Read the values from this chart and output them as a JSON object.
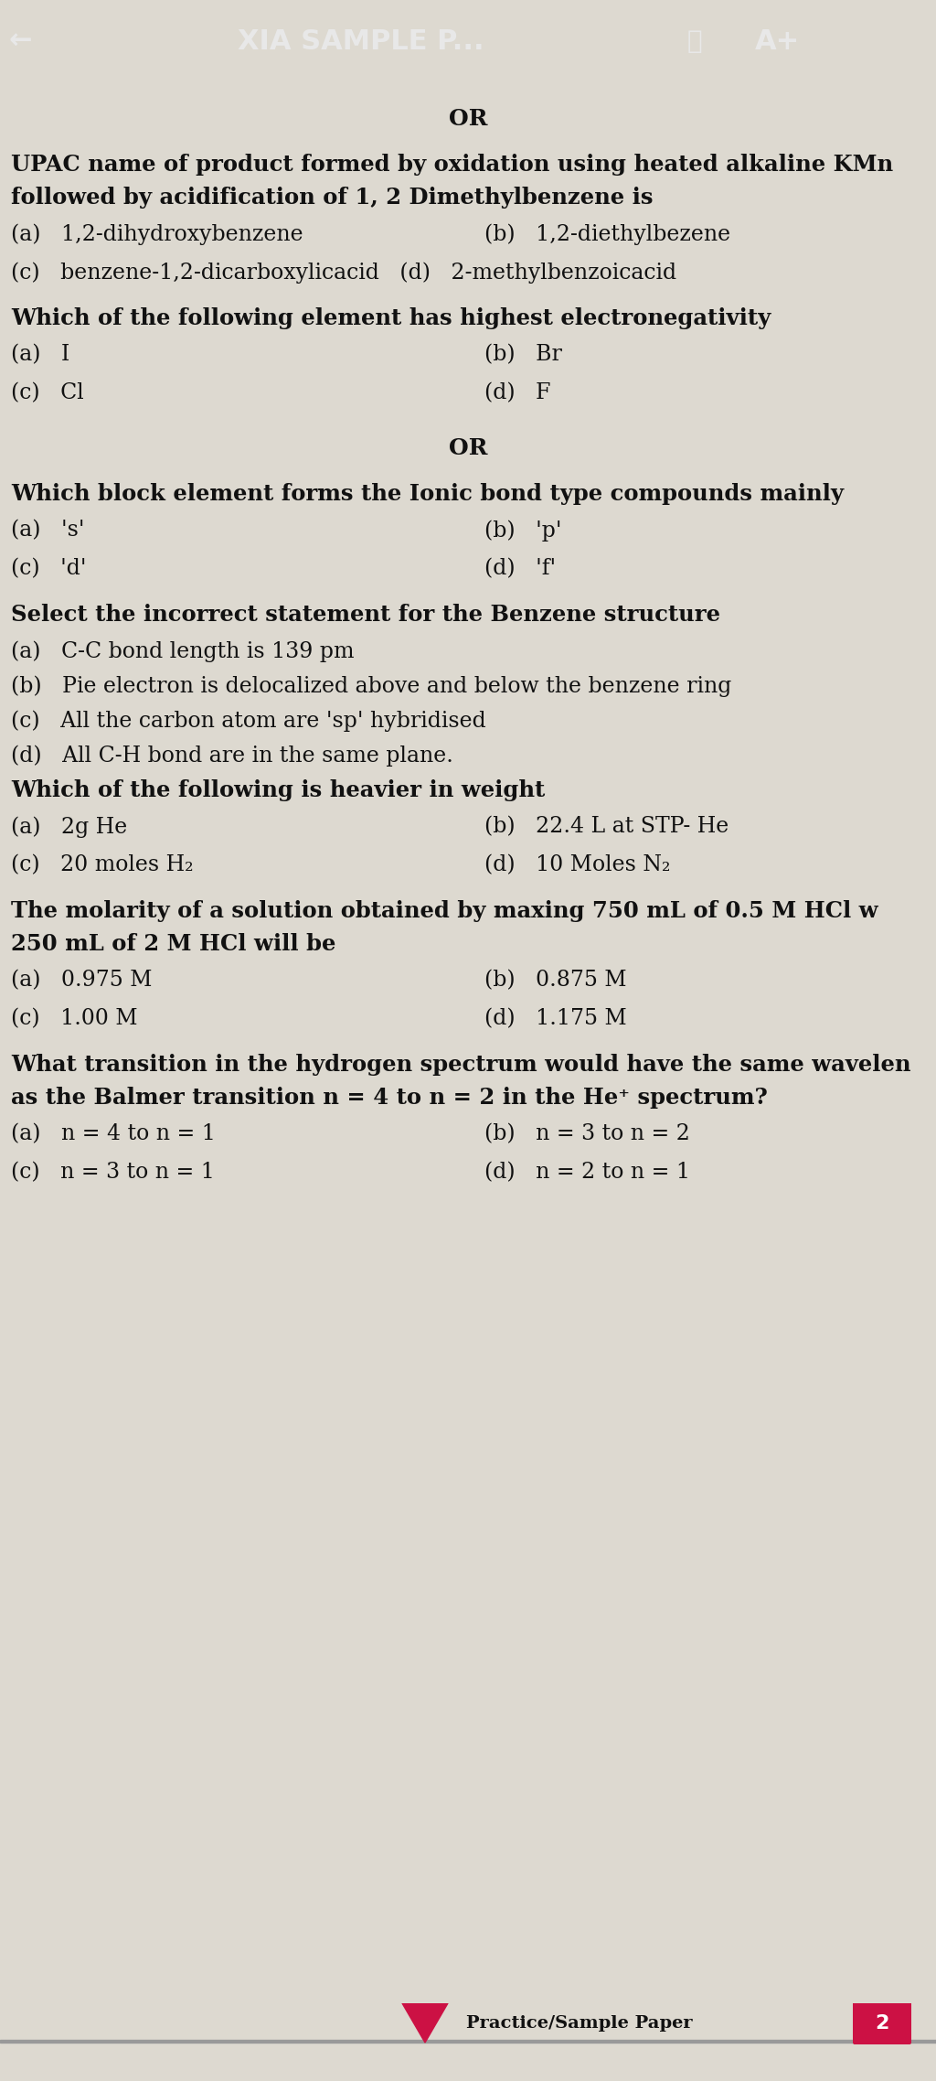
{
  "header_bg": "#252525",
  "header_text_color": "#e8e8e8",
  "header_title": "XIA SAMPLE P...",
  "body_bg": "#ddd9d0",
  "body_text_color": "#111111",
  "footer_text": "Practice/Sample Paper",
  "footer_text_color": "#111111",
  "footer_bar_color": "#888888",
  "page_num": "2",
  "content": [
    {
      "type": "or",
      "text": "OR"
    },
    {
      "type": "question",
      "lines": [
        "UPAC name of product formed by oxidation using heated alkaline KMn",
        "followed by acidification of 1, 2 Dimethylbenzene is"
      ]
    },
    {
      "type": "options_2col",
      "rows": [
        [
          "(a)   1,2-dihydroxybenzene",
          "(b)   1,2-diethylbezene"
        ],
        [
          "(c)   benzene-1,2-dicarboxylicacid   (d)   2-methylbenzoicacid",
          null
        ]
      ]
    },
    {
      "type": "question",
      "lines": [
        "Which of the following element has highest electronegativity"
      ]
    },
    {
      "type": "options_2col",
      "rows": [
        [
          "(a)   I",
          "(b)   Br"
        ],
        [
          "(c)   Cl",
          "(d)   F"
        ]
      ]
    },
    {
      "type": "or",
      "text": "OR"
    },
    {
      "type": "question",
      "lines": [
        "Which block element forms the Ionic bond type compounds mainly"
      ]
    },
    {
      "type": "options_2col",
      "rows": [
        [
          "(a)   's'",
          "(b)   'p'"
        ],
        [
          "(c)   'd'",
          "(d)   'f'"
        ]
      ]
    },
    {
      "type": "question",
      "lines": [
        "Select the incorrect statement for the Benzene structure"
      ]
    },
    {
      "type": "option_single",
      "text": "(a)   C-C bond length is 139 pm"
    },
    {
      "type": "option_single",
      "text": "(b)   Pie electron is delocalized above and below the benzene ring"
    },
    {
      "type": "option_single",
      "text": "(c)   All the carbon atom are 'sp' hybridised"
    },
    {
      "type": "option_single",
      "text": "(d)   All C-H bond are in the same plane."
    },
    {
      "type": "question",
      "lines": [
        "Which of the following is heavier in weight"
      ]
    },
    {
      "type": "options_2col",
      "rows": [
        [
          "(a)   2g He",
          "(b)   22.4 L at STP- He"
        ],
        [
          "(c)   20 moles H₂",
          "(d)   10 Moles N₂"
        ]
      ]
    },
    {
      "type": "question",
      "lines": [
        "The molarity of a solution obtained by maxing 750 mL of 0.5 M HCl w",
        "250 mL of 2 M HCl will be"
      ]
    },
    {
      "type": "options_2col",
      "rows": [
        [
          "(a)   0.975 M",
          "(b)   0.875 M"
        ],
        [
          "(c)   1.00 M",
          "(d)   1.175 M"
        ]
      ]
    },
    {
      "type": "question",
      "lines": [
        "What transition in the hydrogen spectrum would have the same wavelen",
        "as the Balmer transition n = 4 to n = 2 in the He⁺ spectrum?"
      ]
    },
    {
      "type": "options_2col",
      "rows": [
        [
          "(a)   n = 4 to n = 1",
          "(b)   n = 3 to n = 2"
        ],
        [
          "(c)   n = 3 to n = 1",
          "(d)   n = 2 to n = 1"
        ]
      ]
    }
  ]
}
